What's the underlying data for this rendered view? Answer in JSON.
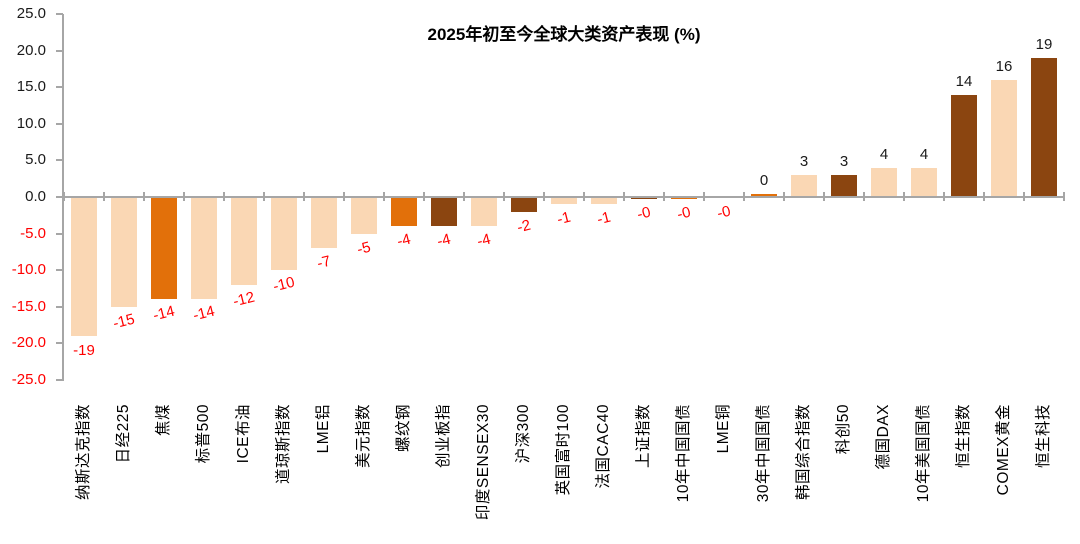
{
  "chart_data": {
    "type": "bar",
    "title": "2025年初至今全球大类资产表现 (%)",
    "categories": [
      "纳斯达克指数",
      "日经225",
      "焦煤",
      "标普500",
      "ICE布油",
      "道琼斯指数",
      "LME铝",
      "美元指数",
      "螺纹钢",
      "创业板指",
      "印度SENSEX30",
      "沪深300",
      "英国富时100",
      "法国CAC40",
      "上证指数",
      "10年中国国债",
      "LME铜",
      "30年中国国债",
      "韩国综合指数",
      "科创50",
      "德国DAX",
      "10年美国国债",
      "恒生指数",
      "COMEX黄金",
      "恒生科技"
    ],
    "values": [
      -19,
      -15,
      -14,
      -14,
      -12,
      -10,
      -7,
      -5,
      -4,
      -4,
      -4,
      -2,
      -1,
      -1,
      -0.3,
      -0.3,
      -0.1,
      0.4,
      3,
      3,
      4,
      4,
      14,
      16,
      19
    ],
    "value_labels": [
      "-19",
      "-15",
      "-14",
      "-14",
      "-12",
      "-10",
      "-7",
      "-5",
      "-4",
      "-4",
      "-4",
      "-2",
      "-1",
      "-1",
      "-0",
      "-0",
      "-0",
      "0",
      "3",
      "3",
      "4",
      "4",
      "14",
      "16",
      "19"
    ],
    "bar_color_keys": [
      "light",
      "light",
      "orange",
      "light",
      "light",
      "light",
      "light",
      "light",
      "orange",
      "brown",
      "light",
      "brown",
      "light",
      "light",
      "brown",
      "orange",
      "light",
      "orange",
      "light",
      "brown",
      "light",
      "light",
      "brown",
      "light",
      "brown"
    ],
    "yticks": [
      "25.0",
      "20.0",
      "15.0",
      "10.0",
      "5.0",
      "0.0",
      "-5.0",
      "-10.0",
      "-15.0",
      "-20.0",
      "-25.0"
    ],
    "ylim": [
      -25,
      25
    ],
    "ytick_step": 5,
    "grid": false,
    "legend": null,
    "colors": {
      "light": "#FAD7B4",
      "orange": "#E2700A",
      "brown": "#8B4510",
      "negative_text": "#FF0000",
      "positive_text": "#1a1a1a",
      "axis": "#a6a6a6",
      "category_text": "#000000"
    }
  }
}
